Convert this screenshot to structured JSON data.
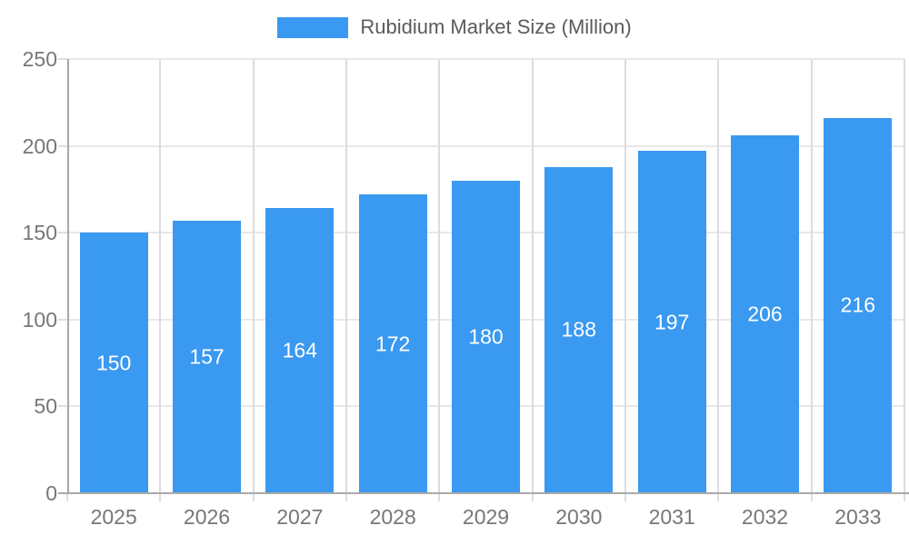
{
  "legend": {
    "label": "Rubidium Market Size (Million)"
  },
  "colors": {
    "bar": "#3a99f0",
    "bar_label": "#ffffff",
    "axis_line": "#a9a9a9",
    "tick": "#dedede",
    "gridline_h": "#e8e8e8",
    "gridline_v": "#dcdcdc",
    "axis_text": "#777777",
    "legend_text": "#5b5b5b",
    "background": "#ffffff"
  },
  "chart_data": {
    "type": "bar",
    "title": "Rubidium Market Size (Million)",
    "series_name": "Rubidium Market Size (Million)",
    "categories": [
      "2025",
      "2026",
      "2027",
      "2028",
      "2029",
      "2030",
      "2031",
      "2032",
      "2033"
    ],
    "values": [
      150,
      157,
      164,
      172,
      180,
      188,
      197,
      206,
      216
    ],
    "bar_labels": [
      "150",
      "157",
      "164",
      "172",
      "180",
      "188",
      "197",
      "206",
      "216"
    ],
    "xlabel": "",
    "ylabel": "",
    "ylim": [
      0,
      250
    ],
    "ytick_step": 50,
    "yticks": [
      0,
      50,
      100,
      150,
      200,
      250
    ],
    "grid": true,
    "legend_position": "top-center",
    "bar_value_labels_inside": true
  }
}
